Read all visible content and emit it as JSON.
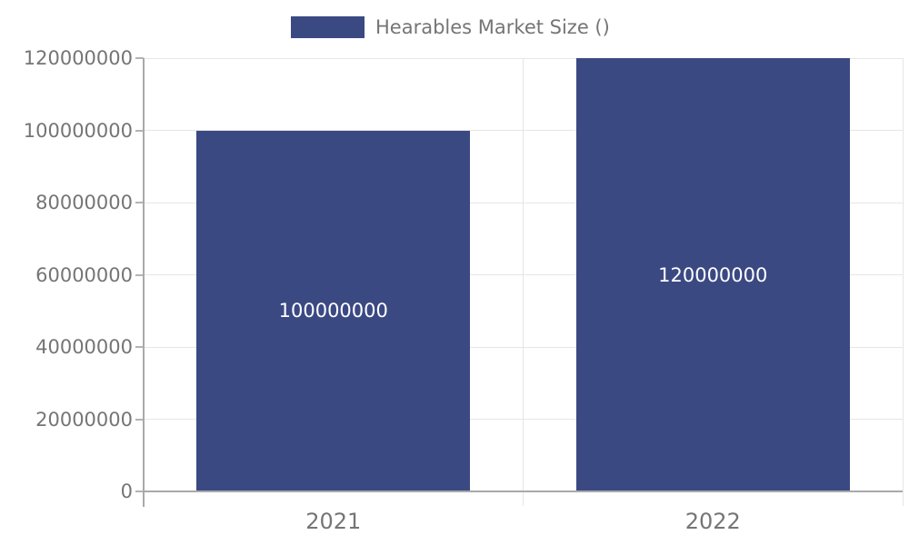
{
  "legend": {
    "label": "Hearables Market Size ()"
  },
  "chart_data": {
    "type": "bar",
    "title": "Hearables Market Size ()",
    "categories": [
      "2021",
      "2022"
    ],
    "values": [
      100000000,
      120000000
    ],
    "bar_labels": [
      "100000000",
      "120000000"
    ],
    "ytick_values": [
      0,
      20000000,
      40000000,
      60000000,
      80000000,
      100000000,
      120000000
    ],
    "ytick_labels": [
      "0",
      "20000000",
      "40000000",
      "60000000",
      "80000000",
      "100000000",
      "120000000"
    ],
    "ylim": [
      0,
      120000000
    ],
    "grid": true,
    "legend_position": "top",
    "xlabel": "",
    "ylabel": "",
    "colors": {
      "bar": "#3b4983",
      "bar_label_text": "#ffffff",
      "axis_text": "#757575",
      "grid_line": "#e6e6e6",
      "axis_line": "#a9a9a9",
      "tick_mark": "#b3b3b3",
      "background": "#ffffff"
    }
  }
}
